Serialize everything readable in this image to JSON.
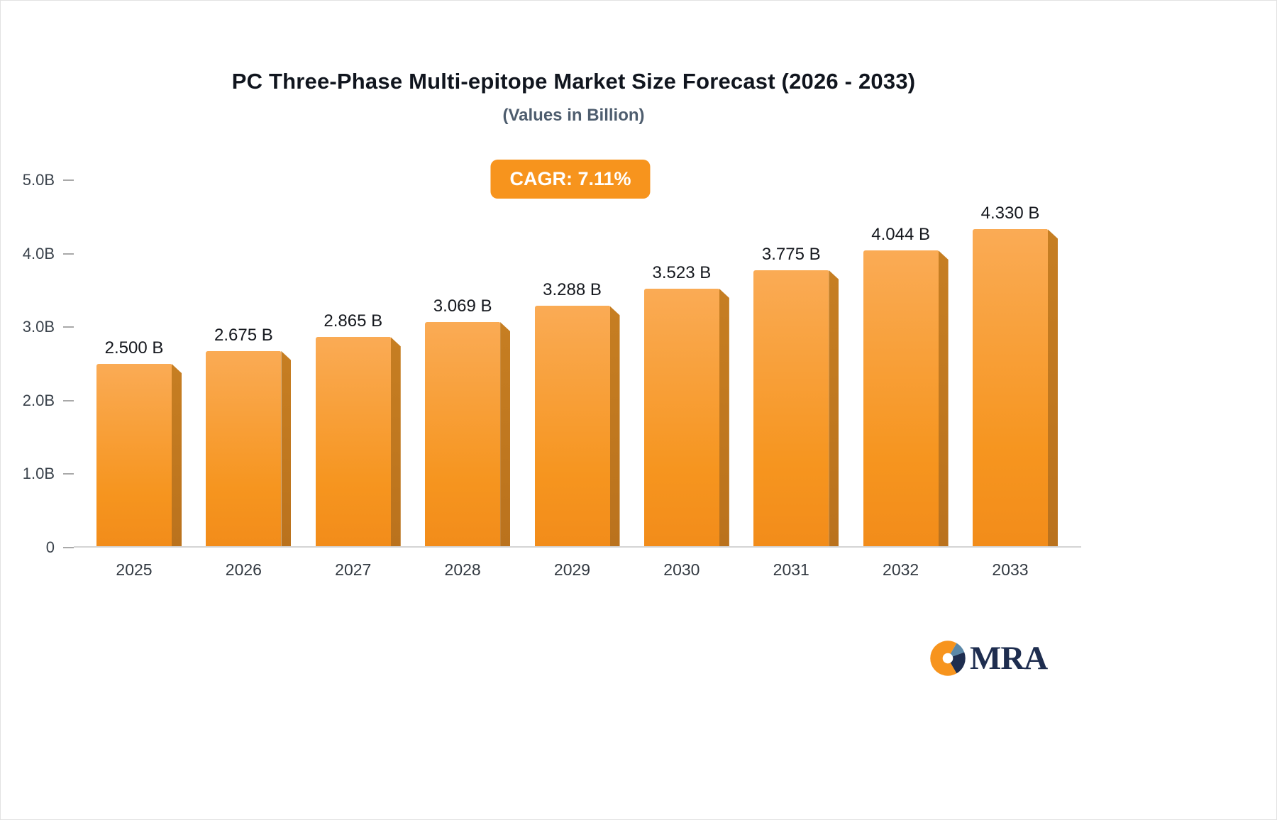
{
  "header": {
    "title": "PC Three-Phase Multi-epitope Market Size Forecast (2026 - 2033)",
    "subtitle": "(Values in Billion)",
    "cagr_badge": "CAGR: 7.11%"
  },
  "chart_data": {
    "type": "bar",
    "title": "PC Three-Phase Multi-epitope Market Size Forecast (2026 - 2033)",
    "subtitle": "(Values in Billion)",
    "annotation": "CAGR: 7.11%",
    "categories": [
      "2025",
      "2026",
      "2027",
      "2028",
      "2029",
      "2030",
      "2031",
      "2032",
      "2033"
    ],
    "values": [
      2.5,
      2.675,
      2.865,
      3.069,
      3.288,
      3.523,
      3.775,
      4.044,
      4.33
    ],
    "bar_labels": [
      "2.500 B",
      "2.675 B",
      "2.865 B",
      "3.069 B",
      "3.288 B",
      "3.523 B",
      "3.775 B",
      "4.044 B",
      "4.330 B"
    ],
    "xlabel": "",
    "ylabel": "",
    "ylim": [
      0,
      5
    ],
    "yticks": [
      {
        "value": 5,
        "label": "5.0B"
      },
      {
        "value": 4,
        "label": "4.0B"
      },
      {
        "value": 3,
        "label": "3.0B"
      },
      {
        "value": 2,
        "label": "2.0B"
      },
      {
        "value": 1,
        "label": "1.0B"
      },
      {
        "value": 0,
        "label": "0"
      }
    ],
    "grid": "off",
    "legend": "none",
    "colors": {
      "accent": "#F7941D",
      "bar_top": "#FAAB55",
      "bar_bottom": "#F28C1A",
      "bar_side": "#C67E22"
    }
  },
  "logo": {
    "text": "MRA",
    "colors": {
      "orange": "#F7941D",
      "navy": "#1e2d4f",
      "steel_blue": "#5b88a8"
    }
  }
}
